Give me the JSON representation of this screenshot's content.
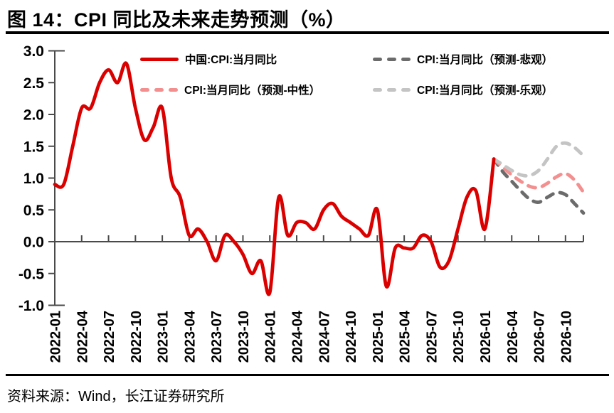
{
  "figure": {
    "title": "图 14：CPI 同比及未来走势预测（%）",
    "source": "资料来源：Wind，长江证券研究所"
  },
  "chart_data": {
    "type": "line",
    "title": "CPI 同比及未来走势预测（%）",
    "x_unit": "month",
    "x_range": [
      "2022-01",
      "2026-12"
    ],
    "x_tick_labels": [
      "2022-01",
      "2022-04",
      "2022-07",
      "2022-10",
      "2023-01",
      "2023-04",
      "2023-07",
      "2023-10",
      "2024-01",
      "2024-04",
      "2024-07",
      "2024-10",
      "2025-01",
      "2025-04",
      "2025-07",
      "2025-10",
      "2026-01",
      "2026-04",
      "2026-07",
      "2026-10"
    ],
    "y_tick_labels": [
      "3.0",
      "2.5",
      "2.0",
      "1.5",
      "1.0",
      "0.5",
      "0.0",
      "-0.5",
      "-1.0"
    ],
    "ylim": [
      -1.0,
      3.0
    ],
    "grid": false,
    "legend_position": "top-inside",
    "axis_color": "#4a4a4a",
    "series": [
      {
        "key": "actual",
        "name": "中国:CPI:当月同比",
        "style": "solid",
        "color": "#db0000",
        "start": "2022-01",
        "start_index": 0,
        "values": [
          0.9,
          0.9,
          1.5,
          2.1,
          2.1,
          2.5,
          2.7,
          2.5,
          2.8,
          2.1,
          1.6,
          1.8,
          2.1,
          1.0,
          0.7,
          0.1,
          0.2,
          0.0,
          -0.3,
          0.1,
          0.0,
          -0.2,
          -0.5,
          -0.3,
          -0.8,
          0.7,
          0.1,
          0.3,
          0.3,
          0.2,
          0.5,
          0.6,
          0.4,
          0.3,
          0.2,
          0.1,
          0.5,
          -0.7,
          -0.1,
          -0.1,
          -0.1,
          0.1,
          0.0,
          -0.4,
          -0.3,
          0.2,
          0.7,
          0.8,
          0.2,
          1.3
        ]
      },
      {
        "key": "forecast_pessimistic",
        "name": "CPI:当月同比（预测-悲观）",
        "style": "dashed",
        "color": "#6b6b6b",
        "start": "2026-02",
        "start_index": 49,
        "values": [
          1.3,
          1.1,
          0.95,
          0.8,
          0.67,
          0.62,
          0.7,
          0.77,
          0.74,
          0.6,
          0.45
        ]
      },
      {
        "key": "forecast_neutral",
        "name": "CPI:当月同比（预测-中性）",
        "style": "dashed",
        "color": "#f48f8f",
        "start": "2026-02",
        "start_index": 49,
        "values": [
          1.3,
          1.17,
          1.05,
          0.95,
          0.87,
          0.85,
          0.92,
          1.02,
          1.07,
          0.97,
          0.78
        ]
      },
      {
        "key": "forecast_optimistic",
        "name": "CPI:当月同比（预测-乐观）",
        "style": "dashed",
        "color": "#c4c4c4",
        "start": "2026-02",
        "start_index": 49,
        "values": [
          1.3,
          1.21,
          1.12,
          1.05,
          1.04,
          1.12,
          1.3,
          1.5,
          1.55,
          1.48,
          1.35
        ]
      }
    ]
  }
}
